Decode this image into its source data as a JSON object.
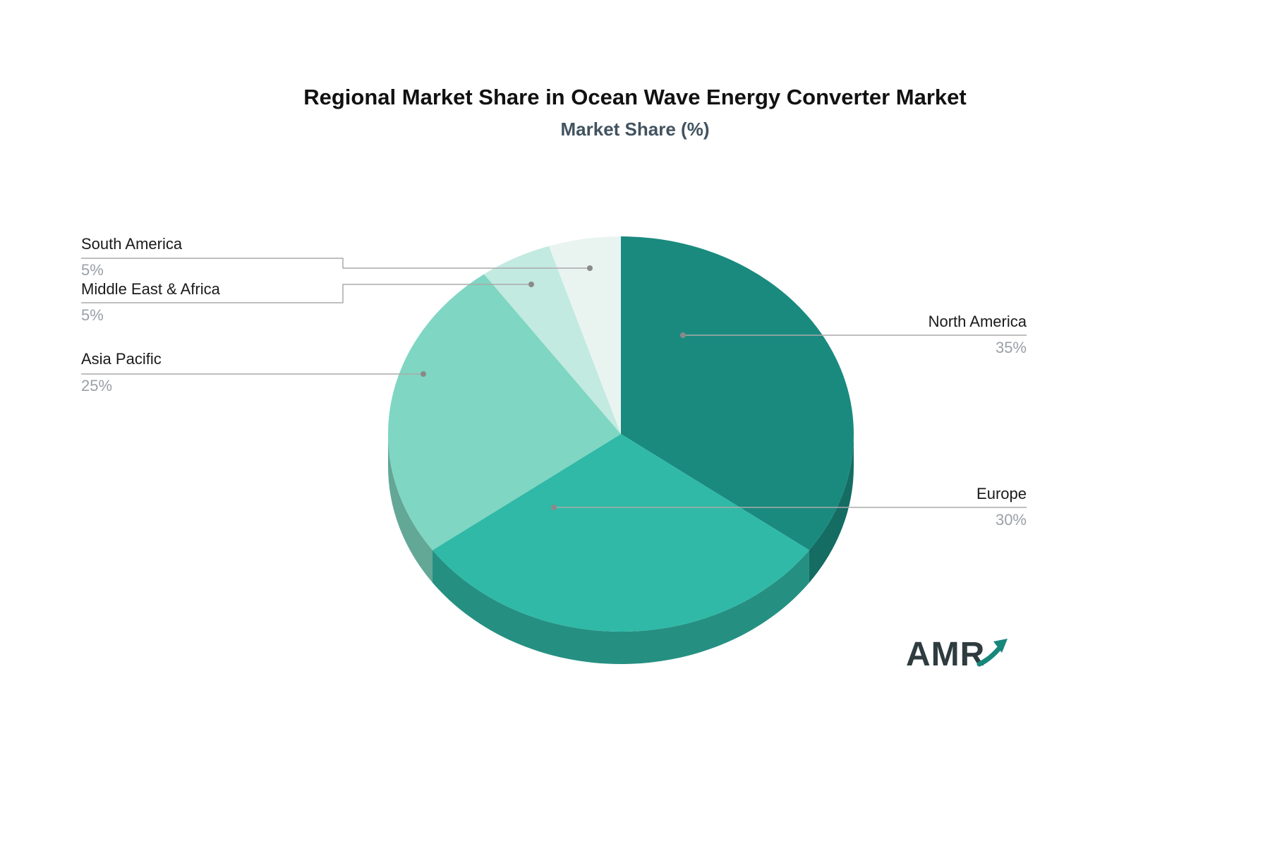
{
  "title": "Regional Market Share in Ocean Wave Energy Converter Market",
  "subtitle": "Market Share (%)",
  "logo": {
    "text": "AMR",
    "arrow_color": "#17877c"
  },
  "chart_data": {
    "type": "pie",
    "title": "Regional Market Share in Ocean Wave Energy Converter Market",
    "subtitle": "Market Share (%)",
    "unit": "%",
    "direction": "clockwise",
    "start_angle_deg": 0,
    "style_3d": true,
    "legend_position": "callout-labels",
    "categories": [
      "North America",
      "Europe",
      "Asia Pacific",
      "Middle East & Africa",
      "South America"
    ],
    "values": [
      35,
      30,
      25,
      5,
      5
    ],
    "slices": [
      {
        "label": "North America",
        "value": 35,
        "value_label": "35%",
        "color": "#1a8a7f"
      },
      {
        "label": "Europe",
        "value": 30,
        "value_label": "30%",
        "color": "#30b9a7"
      },
      {
        "label": "Asia Pacific",
        "value": 25,
        "value_label": "25%",
        "color": "#7fd6c2"
      },
      {
        "label": "Middle East & Africa",
        "value": 5,
        "value_label": "5%",
        "color": "#c2eae0"
      },
      {
        "label": "South America",
        "value": 5,
        "value_label": "5%",
        "color": "#e9f4f1"
      }
    ]
  }
}
